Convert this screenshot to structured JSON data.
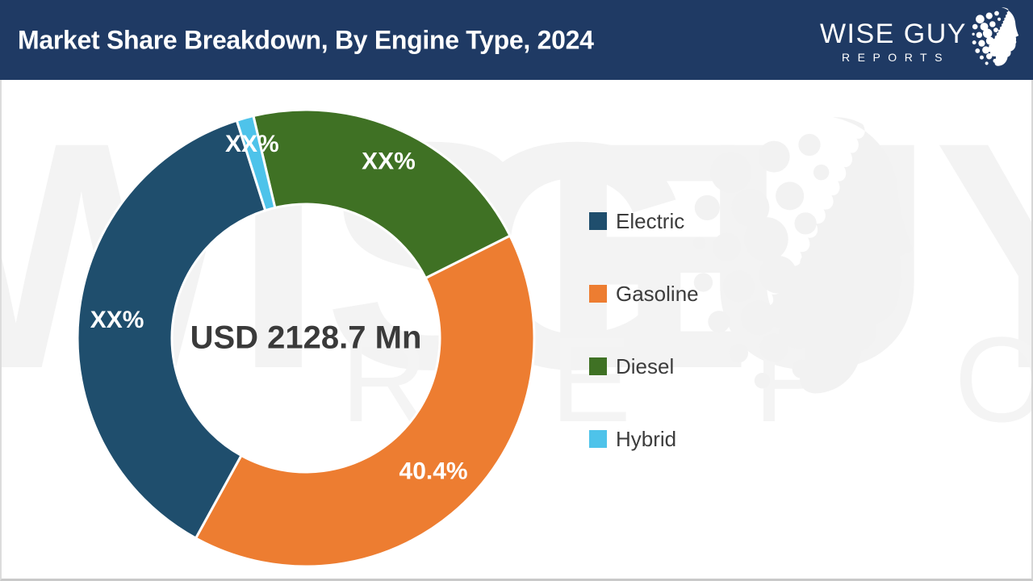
{
  "header": {
    "title": "Market Share Breakdown, By Engine Type, 2024",
    "brand": {
      "name": "WISE GUY",
      "reports": "REPORTS"
    }
  },
  "watermark": {
    "word1": "WISE",
    "word2": "GUY",
    "reports": "R E P O R T S"
  },
  "chart_data": {
    "type": "pie",
    "subtype": "donut",
    "title": "Market Share Breakdown, By Engine Type, 2024",
    "center_label": "USD 2128.7 Mn",
    "legend_position": "right",
    "start_angle_deg": -13.3,
    "draw_order": [
      "Diesel",
      "Gasoline",
      "Electric",
      "Hybrid"
    ],
    "slices": [
      {
        "name": "Electric",
        "label": "XX%",
        "value_pct": 37.1,
        "color": "#1f4e6d"
      },
      {
        "name": "Gasoline",
        "label": "40.4%",
        "value_pct": 40.4,
        "color": "#ed7d31"
      },
      {
        "name": "Diesel",
        "label": "XX%",
        "value_pct": 21.3,
        "color": "#3f7124"
      },
      {
        "name": "Hybrid",
        "label": "XX%",
        "value_pct": 1.2,
        "color": "#4ec3ea"
      }
    ]
  },
  "colors": {
    "header_bg": "#1f3a64",
    "center_text": "#3a3a3a",
    "legend_text": "#3c3c3c",
    "slice_label_text": "#ffffff",
    "watermark": "#f3f3f3"
  }
}
